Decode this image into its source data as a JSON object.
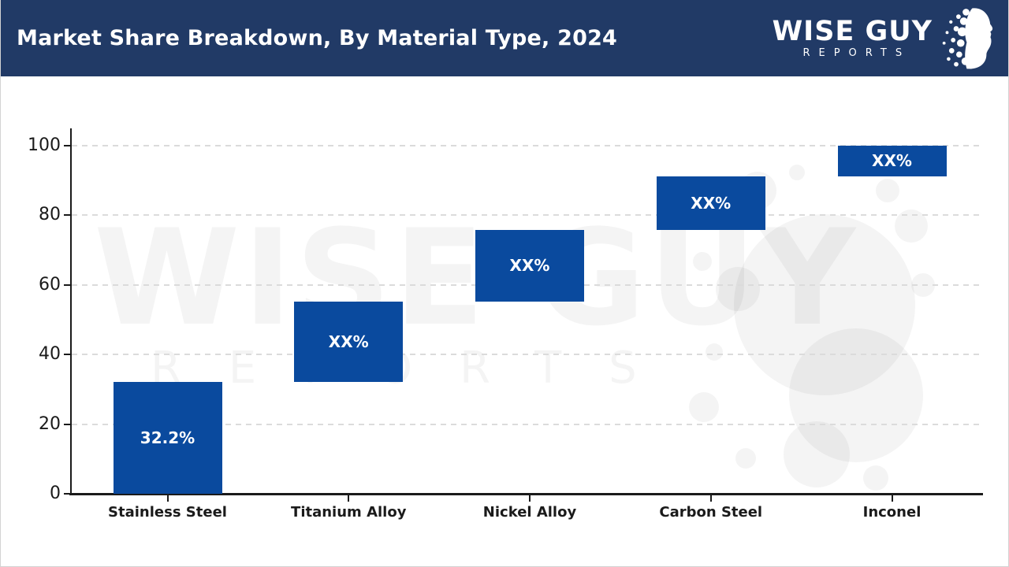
{
  "header": {
    "title": "Market Share Breakdown, By Material Type, 2024",
    "background_color": "#213a66",
    "logo": {
      "line1": "WISE GUY",
      "line2": "REPORTS"
    }
  },
  "watermark": {
    "line1": "WISE GUY",
    "line2": "REPORTS"
  },
  "chart_data": {
    "type": "bar",
    "subtype": "waterfall-floating-bars",
    "title": "Market Share Breakdown, By Material Type, 2024",
    "categories": [
      "Stainless Steel",
      "Titanium Alloy",
      "Nickel Alloy",
      "Carbon Steel",
      "Inconel"
    ],
    "segments": [
      {
        "category": "Stainless Steel",
        "start": 0,
        "end": 32.2,
        "label": "32.2%"
      },
      {
        "category": "Titanium Alloy",
        "start": 32.2,
        "end": 55.2,
        "label": "XX%"
      },
      {
        "category": "Nickel Alloy",
        "start": 55.2,
        "end": 75.9,
        "label": "XX%"
      },
      {
        "category": "Carbon Steel",
        "start": 75.9,
        "end": 91.2,
        "label": "XX%"
      },
      {
        "category": "Inconel",
        "start": 91.2,
        "end": 100,
        "label": "XX%"
      }
    ],
    "ylim": [
      0,
      100
    ],
    "yticks": [
      0,
      20,
      40,
      60,
      80,
      100
    ],
    "xlabel": "",
    "ylabel": "",
    "grid": "horizontal dashed gridlines at y ticks",
    "legend": "none",
    "bar_color": "#0a4a9e",
    "bar_label_color": "#ffffff"
  }
}
